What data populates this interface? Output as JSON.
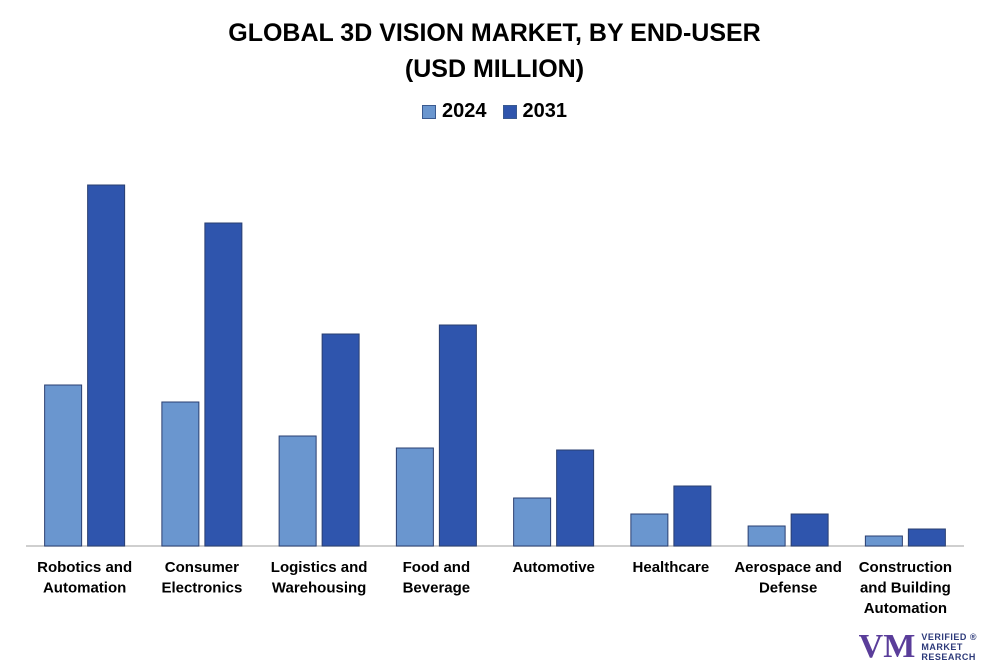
{
  "chart_data": {
    "type": "bar",
    "title": "GLOBAL 3D VISION MARKET, BY END-USER",
    "subtitle": "(USD MILLION)",
    "categories": [
      [
        "Robotics and",
        "Automation"
      ],
      [
        "Consumer",
        "Electronics"
      ],
      [
        "Logistics and",
        "Warehousing"
      ],
      [
        "Food and",
        "Beverage"
      ],
      [
        "Automotive"
      ],
      [
        "Healthcare"
      ],
      [
        "Aerospace and",
        "Defense"
      ],
      [
        "Construction",
        "and Building",
        "Automation"
      ]
    ],
    "series": [
      {
        "name": "2024",
        "color": "#6a96cf",
        "values": [
          16.1,
          14.4,
          11.0,
          9.8,
          4.8,
          3.2,
          2.0,
          1.0
        ]
      },
      {
        "name": "2031",
        "color": "#2f55ad",
        "values": [
          36.1,
          32.3,
          21.2,
          22.1,
          9.6,
          6.0,
          3.2,
          1.7
        ]
      }
    ],
    "ylim": [
      0,
      40
    ],
    "xlabel": "",
    "ylabel": "",
    "legend_position": "top-center",
    "grid": false
  },
  "logo": {
    "mark": "VM",
    "line1": "VERIFIED",
    "line2": "MARKET",
    "line3": "RESEARCH",
    "registered": "®"
  }
}
